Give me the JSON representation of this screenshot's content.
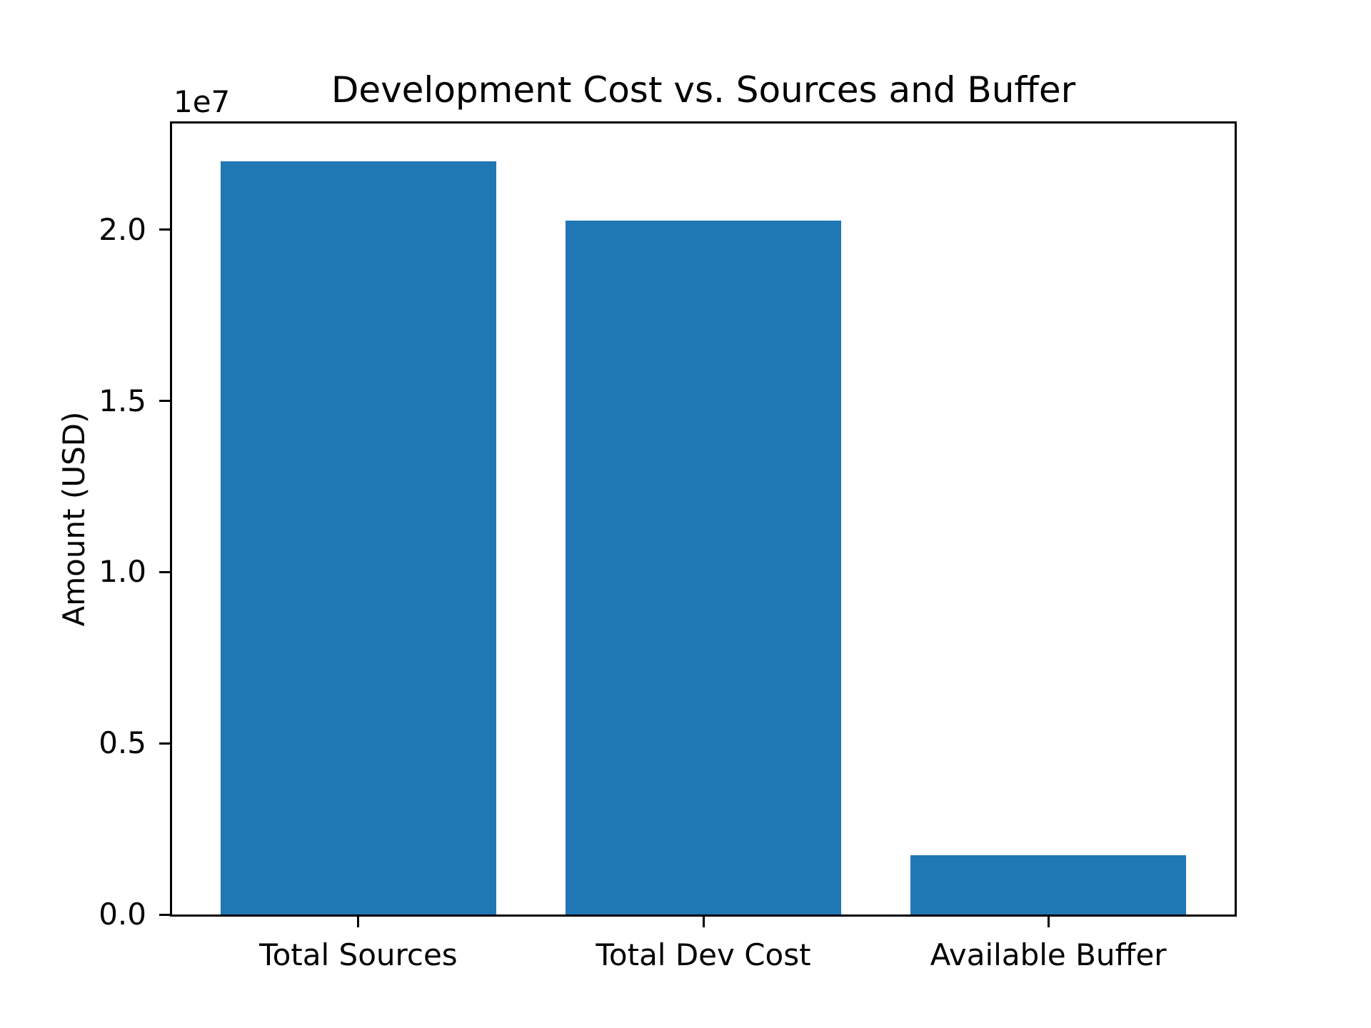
{
  "chart_data": {
    "type": "bar",
    "title": "Development Cost vs. Sources and Buffer",
    "categories": [
      "Total Sources",
      "Total Dev Cost",
      "Available Buffer"
    ],
    "values": [
      22000000,
      20275000,
      1725000
    ],
    "series": [
      {
        "name": "Amount",
        "values": [
          22000000,
          20275000,
          1725000
        ]
      }
    ],
    "xlabel": "",
    "ylabel": "Amount (USD)",
    "offset_label": "1e7",
    "ylim": [
      0,
      23100000
    ],
    "yticks": [
      0,
      5000000,
      10000000,
      15000000,
      20000000
    ],
    "ytick_labels": [
      "0.0",
      "0.5",
      "1.0",
      "1.5",
      "2.0"
    ],
    "bar_color": "#1f77b4",
    "axis_color": "#000000",
    "background_color": "#ffffff",
    "grid": false,
    "legend": null,
    "bar_width_fraction": 0.8
  }
}
